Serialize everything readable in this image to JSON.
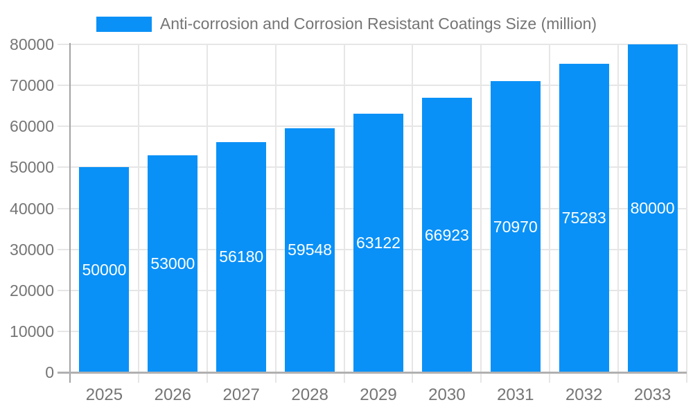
{
  "legend": {
    "label": "Anti-corrosion and Corrosion Resistant Coatings Size (million)"
  },
  "chart_data": {
    "type": "bar",
    "title": "Anti-corrosion and Corrosion Resistant Coatings Size (million)",
    "categories": [
      "2025",
      "2026",
      "2027",
      "2028",
      "2029",
      "2030",
      "2031",
      "2032",
      "2033"
    ],
    "values": [
      50000,
      53000,
      56180,
      59548,
      63122,
      66923,
      70970,
      75283,
      80000
    ],
    "bar_labels": [
      "50000",
      "53000",
      "56180",
      "59548",
      "63122",
      "66923",
      "70970",
      "75283",
      "80000"
    ],
    "xlabel": "",
    "ylabel": "",
    "ylim": [
      0,
      80000
    ],
    "yticks": [
      0,
      10000,
      20000,
      30000,
      40000,
      50000,
      60000,
      70000,
      80000
    ],
    "ytick_labels": [
      "0",
      "10000",
      "20000",
      "30000",
      "40000",
      "50000",
      "60000",
      "70000",
      "80000"
    ],
    "grid": true,
    "legend_position": "top",
    "colors": {
      "bar": "#0A91F7",
      "grid": "#e6e6e6",
      "x_axis": "#b0b0b0",
      "y_axis": "#a3a3a3",
      "axis_text": "#757575",
      "bar_label_text": "#ffffff",
      "background": "#ffffff"
    }
  }
}
